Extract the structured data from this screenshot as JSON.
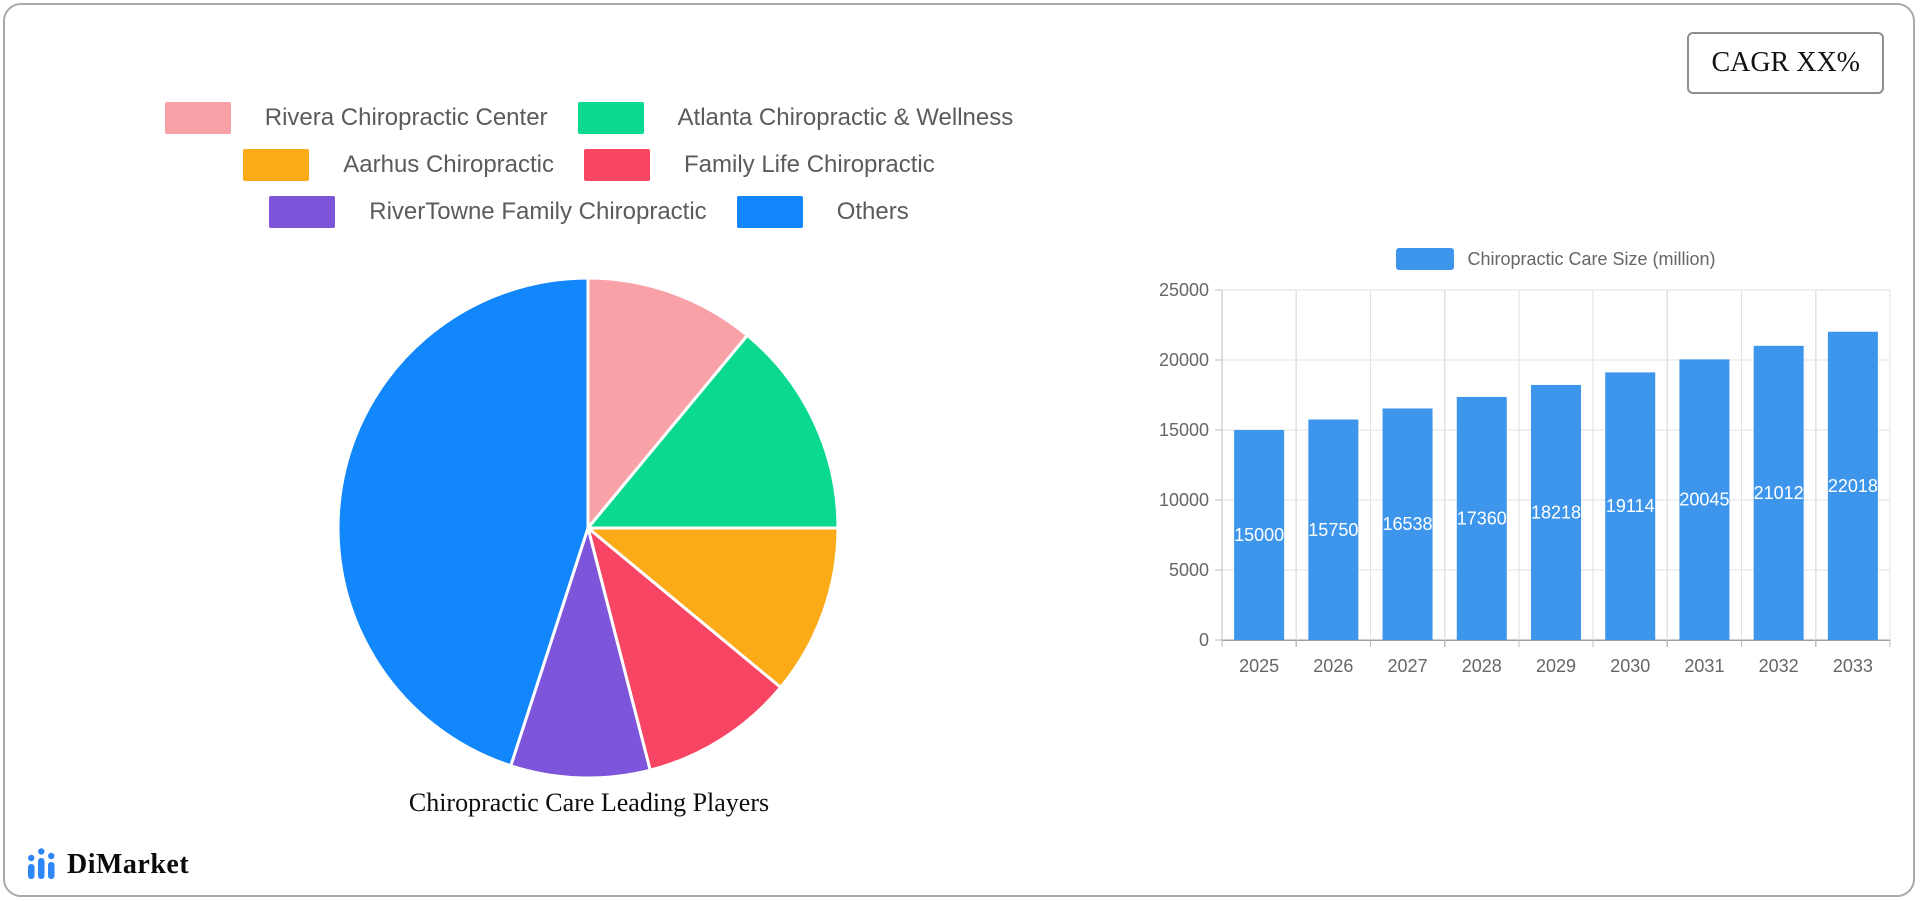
{
  "cagr_label": "CAGR XX%",
  "brand": {
    "name": "DiMarket",
    "icon": "bar-chart-icon",
    "icon_color": "#2e86f7"
  },
  "chart_data": [
    {
      "type": "pie",
      "title": "Chiropractic Care Leading Players",
      "legend_position": "top",
      "slices": [
        {
          "label": "Rivera Chiropractic Center",
          "value_pct": 11,
          "color": "#f8a1a7"
        },
        {
          "label": "Atlanta Chiropractic & Wellness",
          "value_pct": 14,
          "color": "#0bd98f"
        },
        {
          "label": "Aarhus Chiropractic",
          "value_pct": 11,
          "color": "#fbaa18"
        },
        {
          "label": "Family Life Chiropractic",
          "value_pct": 10,
          "color": "#f84563"
        },
        {
          "label": "RiverTowne Family Chiropractic",
          "value_pct": 9,
          "color": "#7c55da"
        },
        {
          "label": "Others",
          "value_pct": 45,
          "color": "#1287fb"
        }
      ],
      "legend_rows": [
        [
          0,
          1
        ],
        [
          2,
          3
        ],
        [
          4,
          5
        ]
      ]
    },
    {
      "type": "bar",
      "legend": "Chiropractic Care Size (million)",
      "categories": [
        "2025",
        "2026",
        "2027",
        "2028",
        "2029",
        "2030",
        "2031",
        "2032",
        "2033"
      ],
      "values": [
        15000,
        15750,
        16538,
        17360,
        18218,
        19114,
        20045,
        21012,
        22018
      ],
      "bar_color": "#3e96ec",
      "value_label_color": "#ffffff",
      "axis_text_color": "#666666",
      "y_ticks": [
        0,
        5000,
        10000,
        15000,
        20000,
        25000
      ],
      "ylim": [
        0,
        25000
      ],
      "grid": true,
      "legend_position": "top"
    }
  ]
}
